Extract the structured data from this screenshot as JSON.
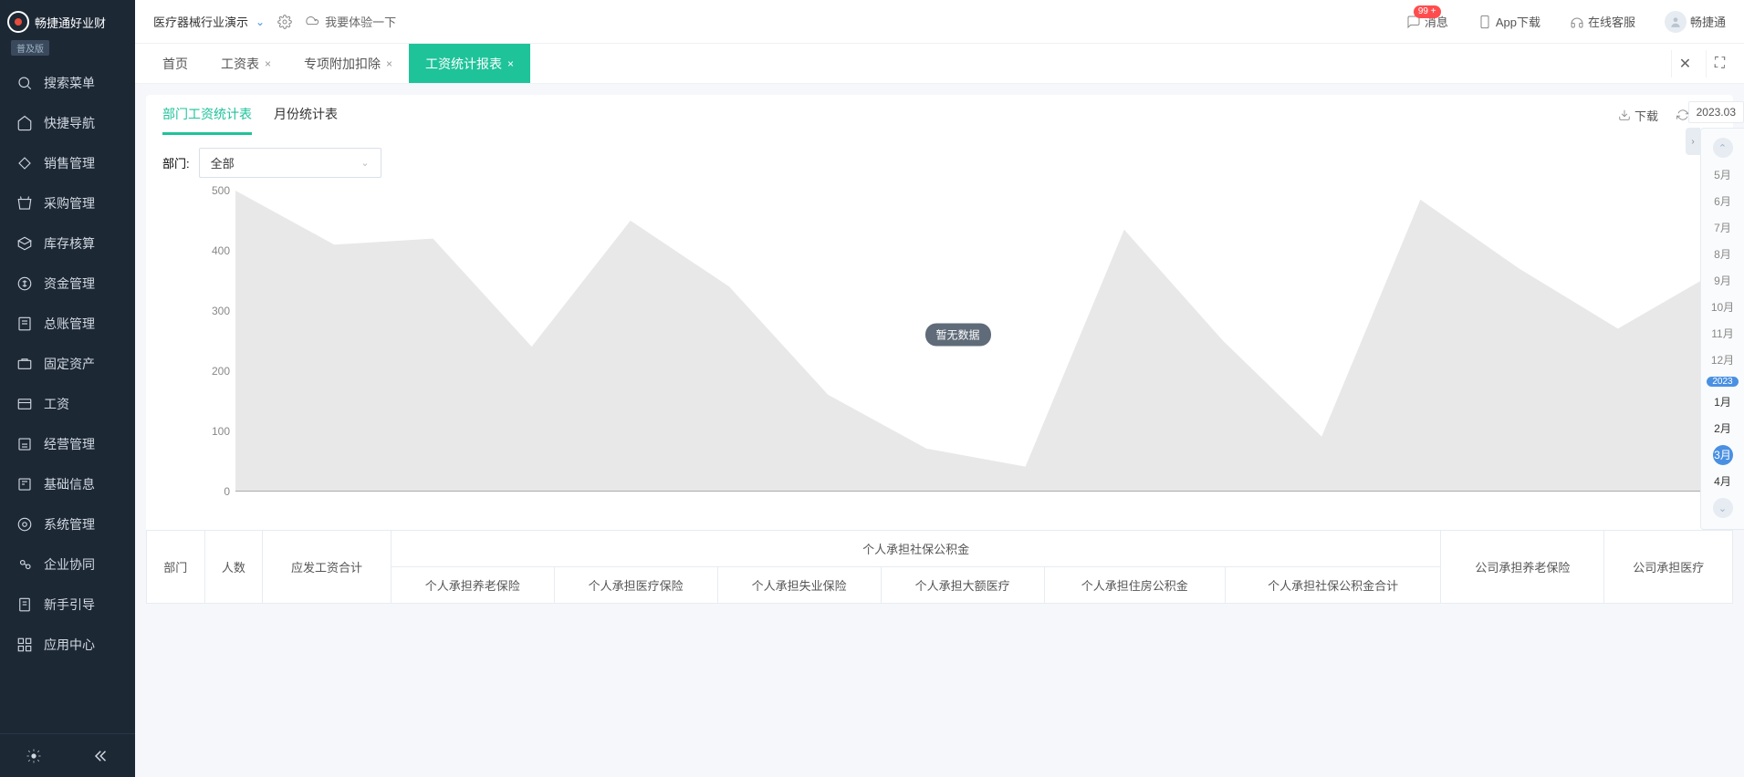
{
  "brand": {
    "name": "畅捷通好业财",
    "edition": "普及版"
  },
  "sidebar": {
    "items": [
      {
        "label": "搜索菜单",
        "icon": "search"
      },
      {
        "label": "快捷导航",
        "icon": "home"
      },
      {
        "label": "销售管理",
        "icon": "tag"
      },
      {
        "label": "采购管理",
        "icon": "bag"
      },
      {
        "label": "库存核算",
        "icon": "box"
      },
      {
        "label": "资金管理",
        "icon": "coin"
      },
      {
        "label": "总账管理",
        "icon": "ledger"
      },
      {
        "label": "固定资产",
        "icon": "asset"
      },
      {
        "label": "工资",
        "icon": "salary"
      },
      {
        "label": "经营管理",
        "icon": "biz"
      },
      {
        "label": "基础信息",
        "icon": "info"
      },
      {
        "label": "系统管理",
        "icon": "sys"
      },
      {
        "label": "企业协同",
        "icon": "collab"
      },
      {
        "label": "新手引导",
        "icon": "guide"
      },
      {
        "label": "应用中心",
        "icon": "apps"
      }
    ]
  },
  "topbar": {
    "org": "医疗器械行业演示",
    "try_text": "我要体验一下",
    "actions": {
      "msg": "消息",
      "msg_badge": "99 +",
      "app": "App下载",
      "service": "在线客服",
      "user": "畅捷通"
    }
  },
  "tabs": [
    {
      "label": "首页",
      "closable": false
    },
    {
      "label": "工资表",
      "closable": true
    },
    {
      "label": "专项附加扣除",
      "closable": true
    },
    {
      "label": "工资统计报表",
      "closable": true,
      "active": true
    }
  ],
  "subtabs": [
    {
      "label": "部门工资统计表",
      "active": true
    },
    {
      "label": "月份统计表"
    }
  ],
  "sub_actions": {
    "download": "下载",
    "refresh": "刷新"
  },
  "filter": {
    "label": "部门:",
    "value": "全部"
  },
  "chart": {
    "type": "area",
    "ylim": [
      0,
      500
    ],
    "ytick_step": 100,
    "values": [
      500,
      410,
      420,
      240,
      450,
      340,
      160,
      70,
      40,
      435,
      250,
      90,
      485,
      370,
      270,
      365
    ],
    "fill_color": "#e8e8e8",
    "axis_color": "#aaaaaa",
    "tick_color": "#888888",
    "background": "#ffffff",
    "no_data_label": "暂无数据"
  },
  "table": {
    "group_header": "个人承担社保公积金",
    "cols_left": [
      "部门",
      "人数",
      "应发工资合计"
    ],
    "cols_group": [
      "个人承担养老保险",
      "个人承担医疗保险",
      "个人承担失业保险",
      "个人承担大额医疗",
      "个人承担住房公积金",
      "个人承担社保公积金合计"
    ],
    "cols_right": [
      "公司承担养老保险",
      "公司承担医疗"
    ]
  },
  "timeline": {
    "current": "2023.03",
    "months_prev": [
      "5月",
      "6月",
      "7月",
      "8月",
      "9月",
      "10月",
      "11月",
      "12月"
    ],
    "year_pill": "2023",
    "months_cur": [
      "1月",
      "2月",
      "3月",
      "4月"
    ],
    "active": "3月"
  }
}
